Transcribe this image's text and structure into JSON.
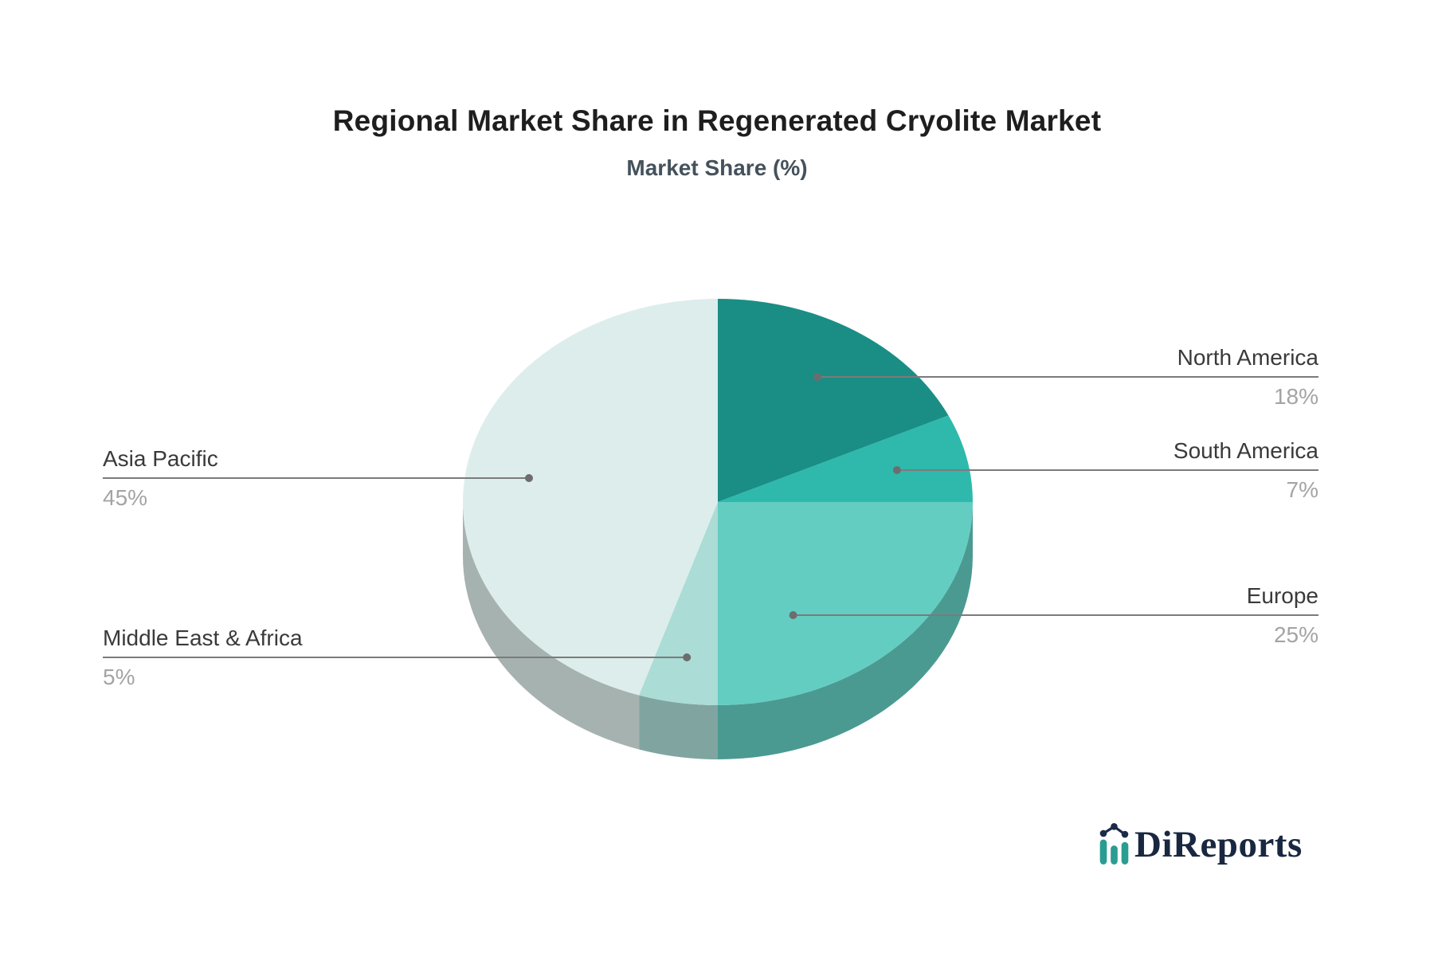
{
  "header": {
    "title": "Regional Market Share in Regenerated Cryolite Market",
    "subtitle": "Market Share (%)"
  },
  "chart_data": {
    "type": "pie",
    "title": "Regional Market Share in Regenerated Cryolite Market",
    "subtitle": "Market Share (%)",
    "unit": "%",
    "style": "3d-pie",
    "direction": "clockwise",
    "start_angle_deg": 0,
    "legend_position": "callout-labels",
    "slices": [
      {
        "label": "North America",
        "value": 18,
        "display": "18%",
        "color": "#1a8e85"
      },
      {
        "label": "South America",
        "value": 7,
        "display": "7%",
        "color": "#2eb9ac"
      },
      {
        "label": "Europe",
        "value": 25,
        "display": "25%",
        "color": "#63cdc2"
      },
      {
        "label": "Middle East & Africa",
        "value": 5,
        "display": "5%",
        "color": "#abdcd6"
      },
      {
        "label": "Asia Pacific",
        "value": 45,
        "display": "45%",
        "color": "#ddedeb"
      }
    ]
  },
  "logo": {
    "text": "DiReports",
    "icon": "bar-line-chart-icon",
    "accent_color": "#2a9d92",
    "text_color": "#1a2740"
  }
}
